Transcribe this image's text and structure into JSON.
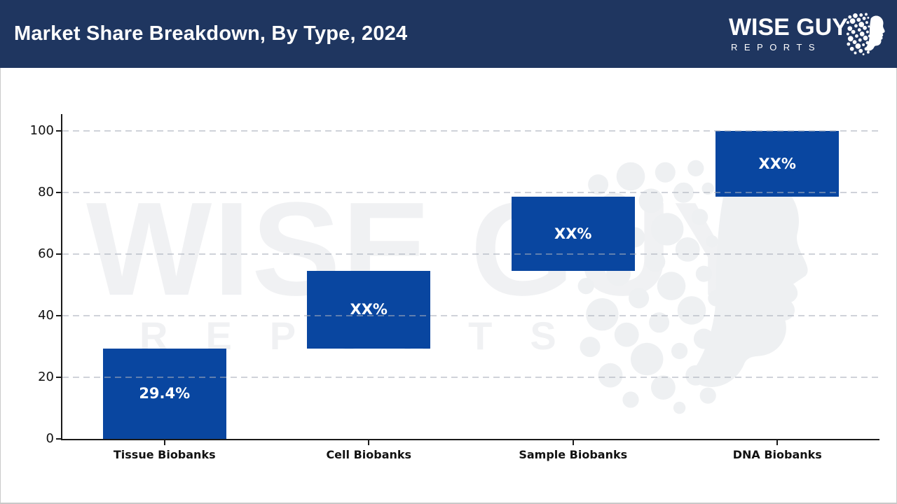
{
  "header": {
    "title": "Market Share Breakdown, By Type, 2024",
    "logo": {
      "wordmark": "WISE GUY",
      "subtext": "REPORTS"
    }
  },
  "watermark": {
    "wordmark": "WISE GUY",
    "subtext": "REPORTS"
  },
  "chart_data": {
    "type": "bar",
    "variant": "floating-segment-column",
    "title": "Market Share Breakdown, By Type, 2024",
    "categories": [
      "Tissue Biobanks",
      "Cell Biobanks",
      "Sample Biobanks",
      "DNA Biobanks"
    ],
    "segments": [
      {
        "category": "Tissue Biobanks",
        "start": 0,
        "end": 29.4,
        "label": "29.4%"
      },
      {
        "category": "Cell Biobanks",
        "start": 29.4,
        "end": 54.5,
        "label": "XX%"
      },
      {
        "category": "Sample Biobanks",
        "start": 54.5,
        "end": 78.6,
        "label": "XX%"
      },
      {
        "category": "DNA Biobanks",
        "start": 78.6,
        "end": 100,
        "label": "XX%"
      }
    ],
    "ylim": [
      0,
      100
    ],
    "yticks": [
      0,
      20,
      40,
      60,
      80,
      100
    ],
    "xlabel": "",
    "ylabel": "",
    "grid": "horizontal-dashed",
    "legend": "none",
    "bar_color": "#0946a0",
    "bar_label_color": "#ffffff",
    "axis_color": "#1a1a1a"
  },
  "colors": {
    "header_bg": "#1f3660",
    "card_border": "#c9c9c9",
    "watermark": "#f0f1f3"
  }
}
